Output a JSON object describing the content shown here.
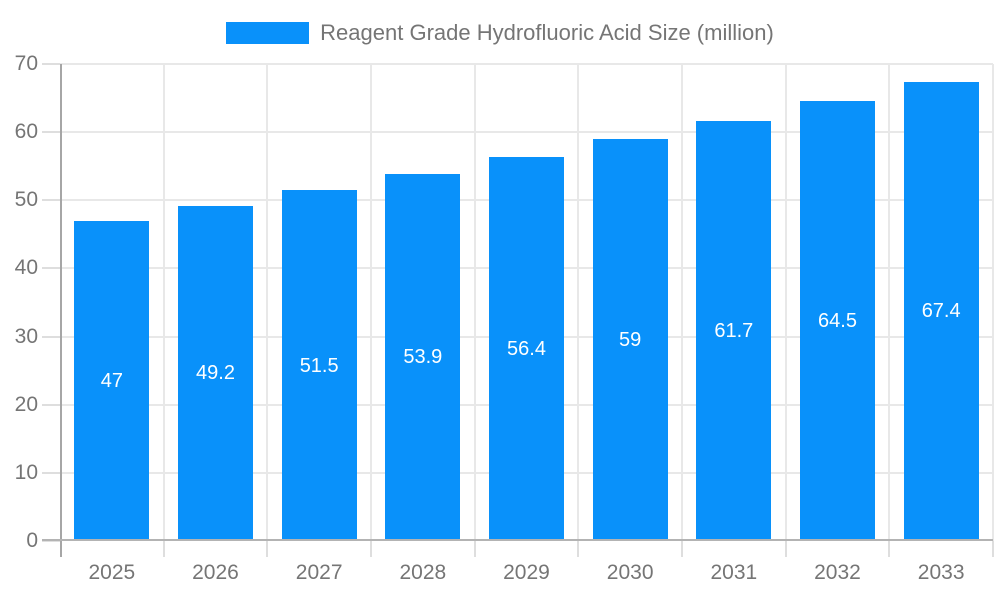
{
  "legend": {
    "label": "Reagent Grade Hydrofluoric Acid Size (million)"
  },
  "colors": {
    "bar": "#0991fa",
    "bar_label_text": "#ffffff",
    "axis_text": "#757575",
    "x_axis_line": "#b3b3b3",
    "y_axis_line": "#a6a6a6",
    "grid_line": "#e8e8e8",
    "tick_line": "#dedede",
    "background": "#ffffff"
  },
  "chart_data": {
    "type": "bar",
    "title": "Reagent Grade Hydrofluoric Acid Size (million)",
    "categories": [
      "2025",
      "2026",
      "2027",
      "2028",
      "2029",
      "2030",
      "2031",
      "2032",
      "2033"
    ],
    "values": [
      47,
      49.2,
      51.5,
      53.9,
      56.4,
      59,
      61.7,
      64.5,
      67.4
    ],
    "value_labels": [
      "47",
      "49.2",
      "51.5",
      "53.9",
      "56.4",
      "59",
      "61.7",
      "64.5",
      "67.4"
    ],
    "xlabel": "",
    "ylabel": "",
    "ylim": [
      0,
      70
    ],
    "yticks": [
      0,
      10,
      20,
      30,
      40,
      50,
      60,
      70
    ],
    "grid": true,
    "legend_position": "top-center",
    "bar_label_position": "inside-center"
  }
}
